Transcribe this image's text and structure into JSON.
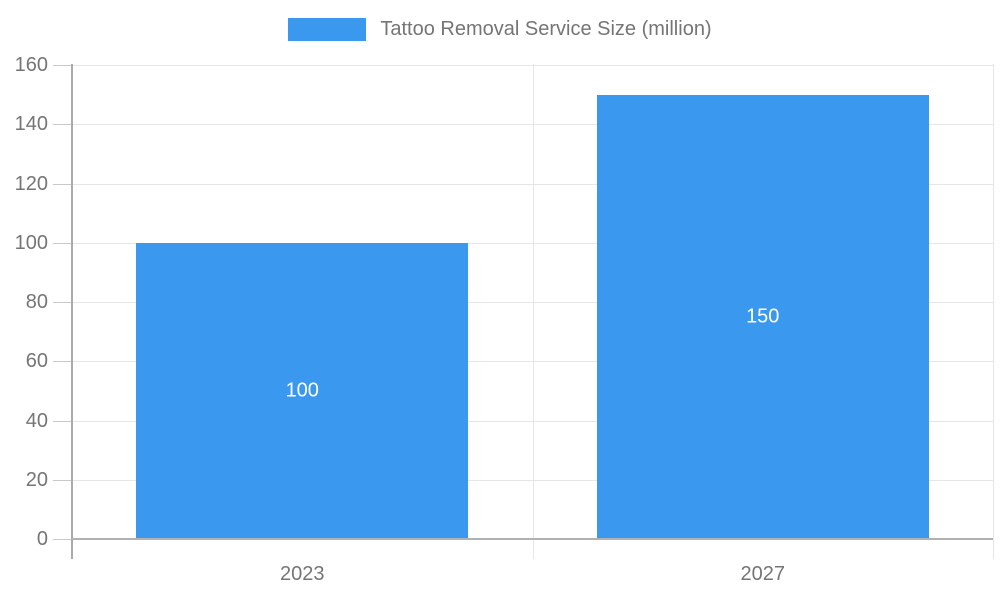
{
  "chart_data": {
    "type": "bar",
    "title": "Tattoo Removal Service Size (million)",
    "categories": [
      "2023",
      "2027"
    ],
    "values": [
      100,
      150
    ],
    "bar_value_labels": [
      "100",
      "150"
    ],
    "xlabel": "",
    "ylabel": "",
    "ylim": [
      0,
      160
    ],
    "yticks": [
      0,
      20,
      40,
      60,
      80,
      100,
      120,
      140,
      160
    ],
    "grid": true,
    "legend_position": "top-center",
    "colors": {
      "bar": "#3a99ee",
      "bar_value_text": "#ffffff",
      "axis_text": "#757575",
      "gridline": "#e6e6e6",
      "axis_line": "#b1b1b1"
    }
  }
}
